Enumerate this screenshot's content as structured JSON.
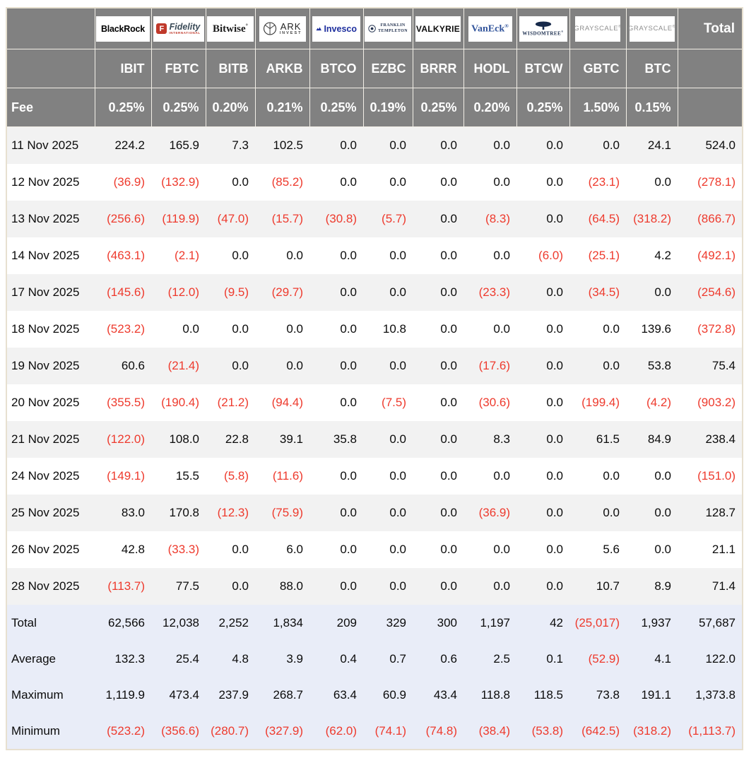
{
  "table": {
    "fee_label": "Fee",
    "total_label": "Total",
    "columns": [
      {
        "provider": "BlackRock",
        "ticker": "IBIT",
        "fee": "0.25%"
      },
      {
        "provider": "Fidelity",
        "ticker": "FBTC",
        "fee": "0.25%"
      },
      {
        "provider": "Bitwise",
        "ticker": "BITB",
        "fee": "0.20%"
      },
      {
        "provider": "ARK Invest",
        "ticker": "ARKB",
        "fee": "0.21%"
      },
      {
        "provider": "Invesco",
        "ticker": "BTCO",
        "fee": "0.25%"
      },
      {
        "provider": "Franklin Templeton",
        "ticker": "EZBC",
        "fee": "0.19%"
      },
      {
        "provider": "Valkyrie",
        "ticker": "BRRR",
        "fee": "0.25%"
      },
      {
        "provider": "VanEck",
        "ticker": "HODL",
        "fee": "0.20%"
      },
      {
        "provider": "WisdomTree",
        "ticker": "BTCW",
        "fee": "0.25%"
      },
      {
        "provider": "Grayscale",
        "ticker": "GBTC",
        "fee": "1.50%"
      },
      {
        "provider": "Grayscale",
        "ticker": "BTC",
        "fee": "0.15%"
      }
    ],
    "logos": {
      "blackrock": "BlackRock",
      "fidelity_f": "F",
      "fidelity_name": "Fidelity",
      "fidelity_sub": "INTERNATIONAL",
      "bitwise": "Bitwise",
      "ark_top": "ARK",
      "ark_bottom": "INVEST",
      "invesco": "Invesco",
      "franklin_line1": "FRANKLIN",
      "franklin_line2": "TEMPLETON",
      "valkyrie": "VALKYRIE",
      "vaneck": "VanEck",
      "wisdomtree": "WISDOMTREE",
      "grayscale": "GRAYSCALE"
    },
    "rows": [
      {
        "label": "11 Nov 2025",
        "values": [
          "224.2",
          "165.9",
          "7.3",
          "102.5",
          "0.0",
          "0.0",
          "0.0",
          "0.0",
          "0.0",
          "0.0",
          "24.1",
          "524.0"
        ]
      },
      {
        "label": "12 Nov 2025",
        "values": [
          "(36.9)",
          "(132.9)",
          "0.0",
          "(85.2)",
          "0.0",
          "0.0",
          "0.0",
          "0.0",
          "0.0",
          "(23.1)",
          "0.0",
          "(278.1)"
        ]
      },
      {
        "label": "13 Nov 2025",
        "values": [
          "(256.6)",
          "(119.9)",
          "(47.0)",
          "(15.7)",
          "(30.8)",
          "(5.7)",
          "0.0",
          "(8.3)",
          "0.0",
          "(64.5)",
          "(318.2)",
          "(866.7)"
        ]
      },
      {
        "label": "14 Nov 2025",
        "values": [
          "(463.1)",
          "(2.1)",
          "0.0",
          "0.0",
          "0.0",
          "0.0",
          "0.0",
          "0.0",
          "(6.0)",
          "(25.1)",
          "4.2",
          "(492.1)"
        ]
      },
      {
        "label": "17 Nov 2025",
        "values": [
          "(145.6)",
          "(12.0)",
          "(9.5)",
          "(29.7)",
          "0.0",
          "0.0",
          "0.0",
          "(23.3)",
          "0.0",
          "(34.5)",
          "0.0",
          "(254.6)"
        ]
      },
      {
        "label": "18 Nov 2025",
        "values": [
          "(523.2)",
          "0.0",
          "0.0",
          "0.0",
          "0.0",
          "10.8",
          "0.0",
          "0.0",
          "0.0",
          "0.0",
          "139.6",
          "(372.8)"
        ]
      },
      {
        "label": "19 Nov 2025",
        "values": [
          "60.6",
          "(21.4)",
          "0.0",
          "0.0",
          "0.0",
          "0.0",
          "0.0",
          "(17.6)",
          "0.0",
          "0.0",
          "53.8",
          "75.4"
        ]
      },
      {
        "label": "20 Nov 2025",
        "values": [
          "(355.5)",
          "(190.4)",
          "(21.2)",
          "(94.4)",
          "0.0",
          "(7.5)",
          "0.0",
          "(30.6)",
          "0.0",
          "(199.4)",
          "(4.2)",
          "(903.2)"
        ]
      },
      {
        "label": "21 Nov 2025",
        "values": [
          "(122.0)",
          "108.0",
          "22.8",
          "39.1",
          "35.8",
          "0.0",
          "0.0",
          "8.3",
          "0.0",
          "61.5",
          "84.9",
          "238.4"
        ]
      },
      {
        "label": "24 Nov 2025",
        "values": [
          "(149.1)",
          "15.5",
          "(5.8)",
          "(11.6)",
          "0.0",
          "0.0",
          "0.0",
          "0.0",
          "0.0",
          "0.0",
          "0.0",
          "(151.0)"
        ]
      },
      {
        "label": "25 Nov 2025",
        "values": [
          "83.0",
          "170.8",
          "(12.3)",
          "(75.9)",
          "0.0",
          "0.0",
          "0.0",
          "(36.9)",
          "0.0",
          "0.0",
          "0.0",
          "128.7"
        ]
      },
      {
        "label": "26 Nov 2025",
        "values": [
          "42.8",
          "(33.3)",
          "0.0",
          "6.0",
          "0.0",
          "0.0",
          "0.0",
          "0.0",
          "0.0",
          "5.6",
          "0.0",
          "21.1"
        ]
      },
      {
        "label": "28 Nov 2025",
        "values": [
          "(113.7)",
          "77.5",
          "0.0",
          "88.0",
          "0.0",
          "0.0",
          "0.0",
          "0.0",
          "0.0",
          "10.7",
          "8.9",
          "71.4"
        ]
      }
    ],
    "summary": [
      {
        "label": "Total",
        "values": [
          "62,566",
          "12,038",
          "2,252",
          "1,834",
          "209",
          "329",
          "300",
          "1,197",
          "42",
          "(25,017)",
          "1,937",
          "57,687"
        ]
      },
      {
        "label": "Average",
        "values": [
          "132.3",
          "25.4",
          "4.8",
          "3.9",
          "0.4",
          "0.7",
          "0.6",
          "2.5",
          "0.1",
          "(52.9)",
          "4.1",
          "122.0"
        ]
      },
      {
        "label": "Maximum",
        "values": [
          "1,119.9",
          "473.4",
          "237.9",
          "268.7",
          "63.4",
          "60.9",
          "43.4",
          "118.8",
          "118.5",
          "73.8",
          "191.1",
          "1,373.8"
        ]
      },
      {
        "label": "Minimum",
        "values": [
          "(523.2)",
          "(356.6)",
          "(280.7)",
          "(327.9)",
          "(62.0)",
          "(74.1)",
          "(74.8)",
          "(38.4)",
          "(53.8)",
          "(642.5)",
          "(318.2)",
          "(1,113.7)"
        ]
      }
    ]
  },
  "colors": {
    "header_bg": "#818181",
    "stripe_bg": "#f2f2f2",
    "summary_bg": "#e9edf8",
    "negative_red": "#ee3a2d",
    "outer_border": "#e7e0d0"
  }
}
